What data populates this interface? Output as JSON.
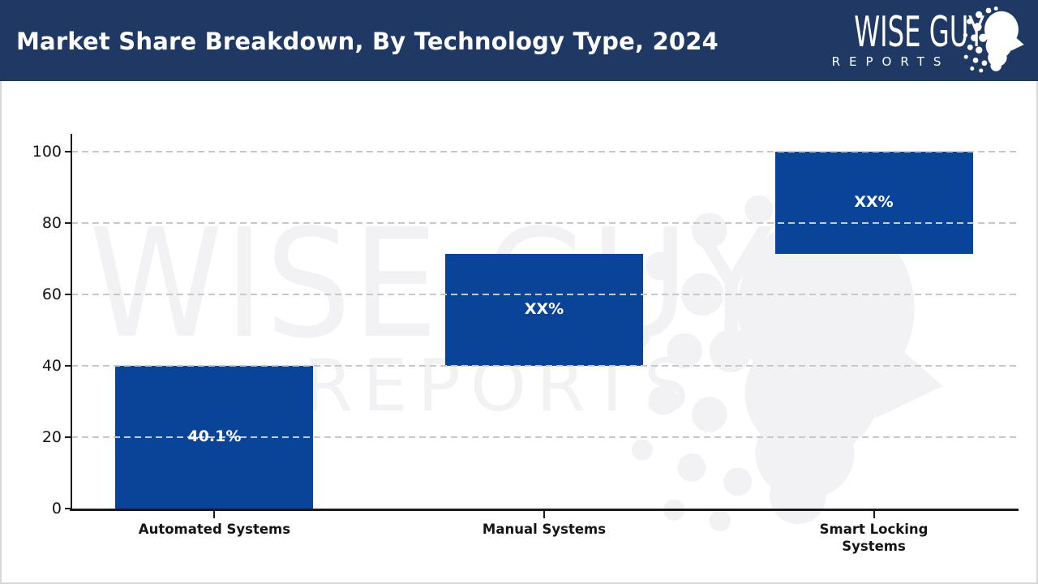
{
  "header": {
    "title": "Market Share Breakdown, By Technology Type, 2024",
    "logo": {
      "line1": "WISE GUY",
      "line2": "REPORTS",
      "face_icon": "dotted-face-profile"
    }
  },
  "watermark": {
    "line1": "WISE GUY",
    "line2": "REPORTS",
    "face_icon": "dotted-face-profile"
  },
  "colors": {
    "header_bg": "#1F3864",
    "header_text": "#FFFFFF",
    "bar_fill": "#0A4499",
    "bar_label_text": "#FFFFFF",
    "gridline": "#C8C8C8",
    "axis": "#1B1B1B",
    "tick_label": "#141414",
    "watermark": "#F2F2F5",
    "frame_border": "#D8D8D8",
    "background": "#FFFFFF"
  },
  "chart_data": {
    "type": "bar",
    "subtype": "stacked-waterfall",
    "title": "Market Share Breakdown, By Technology Type, 2024",
    "categories": [
      "Automated Systems",
      "Manual Systems",
      "Smart Locking Systems"
    ],
    "tick_label_lines": [
      [
        "Automated Systems"
      ],
      [
        "Manual Systems"
      ],
      [
        "Smart Locking",
        "Systems"
      ]
    ],
    "series": [
      {
        "name": "Market share (%)",
        "segments": [
          {
            "category": "Automated Systems",
            "start": 0,
            "end": 40.1,
            "label": "40.1%"
          },
          {
            "category": "Manual Systems",
            "start": 40.1,
            "end": 71.4,
            "label": "XX%"
          },
          {
            "category": "Smart Locking Systems",
            "start": 71.4,
            "end": 100,
            "label": "XX%"
          }
        ]
      }
    ],
    "xlabel": "",
    "ylabel": "",
    "ylim": [
      0,
      105
    ],
    "xlim": [
      -0.434,
      2.434
    ],
    "yticks": [
      0,
      20,
      40,
      60,
      80,
      100
    ],
    "bar_width_fraction": 0.6,
    "grid": "horizontal-dashed",
    "legend": "none"
  }
}
